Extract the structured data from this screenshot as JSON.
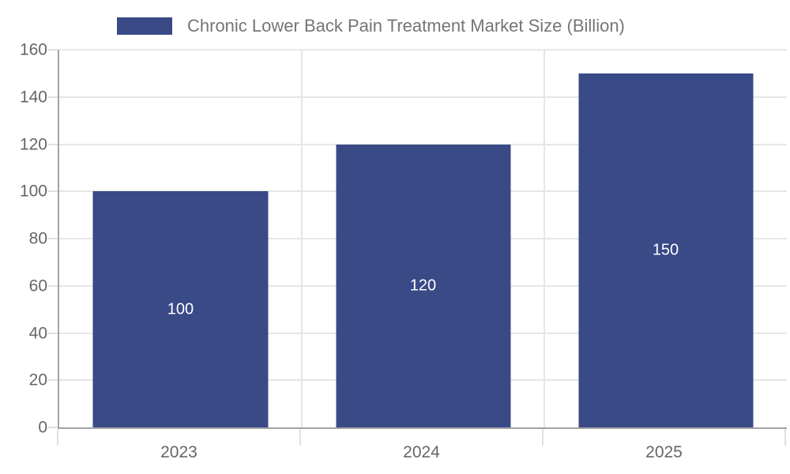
{
  "chart_data": {
    "type": "bar",
    "title": "Chronic Lower Back Pain Treatment Market Size (Billion)",
    "categories": [
      "2023",
      "2024",
      "2025"
    ],
    "values": [
      100,
      120,
      150
    ],
    "series": [
      {
        "name": "Chronic Lower Back Pain Treatment Market Size (Billion)",
        "values": [
          100,
          120,
          150
        ]
      }
    ],
    "bar_value_labels": [
      "100",
      "120",
      "150"
    ],
    "yticks": [
      0,
      20,
      40,
      60,
      80,
      100,
      120,
      140,
      160
    ],
    "ylim": [
      0,
      160
    ],
    "xlabel": "",
    "ylabel": "",
    "grid": true,
    "legend_position": "top-center"
  },
  "colors": {
    "bar": "#3a4a87",
    "bar_label_text": "#ffffff",
    "title_text": "#757575",
    "tick_text": "#666666",
    "gridline": "#e6e6e6",
    "tick_mark": "#e0e0e0",
    "axis_line": "#a3a3a3",
    "background": "#ffffff"
  }
}
